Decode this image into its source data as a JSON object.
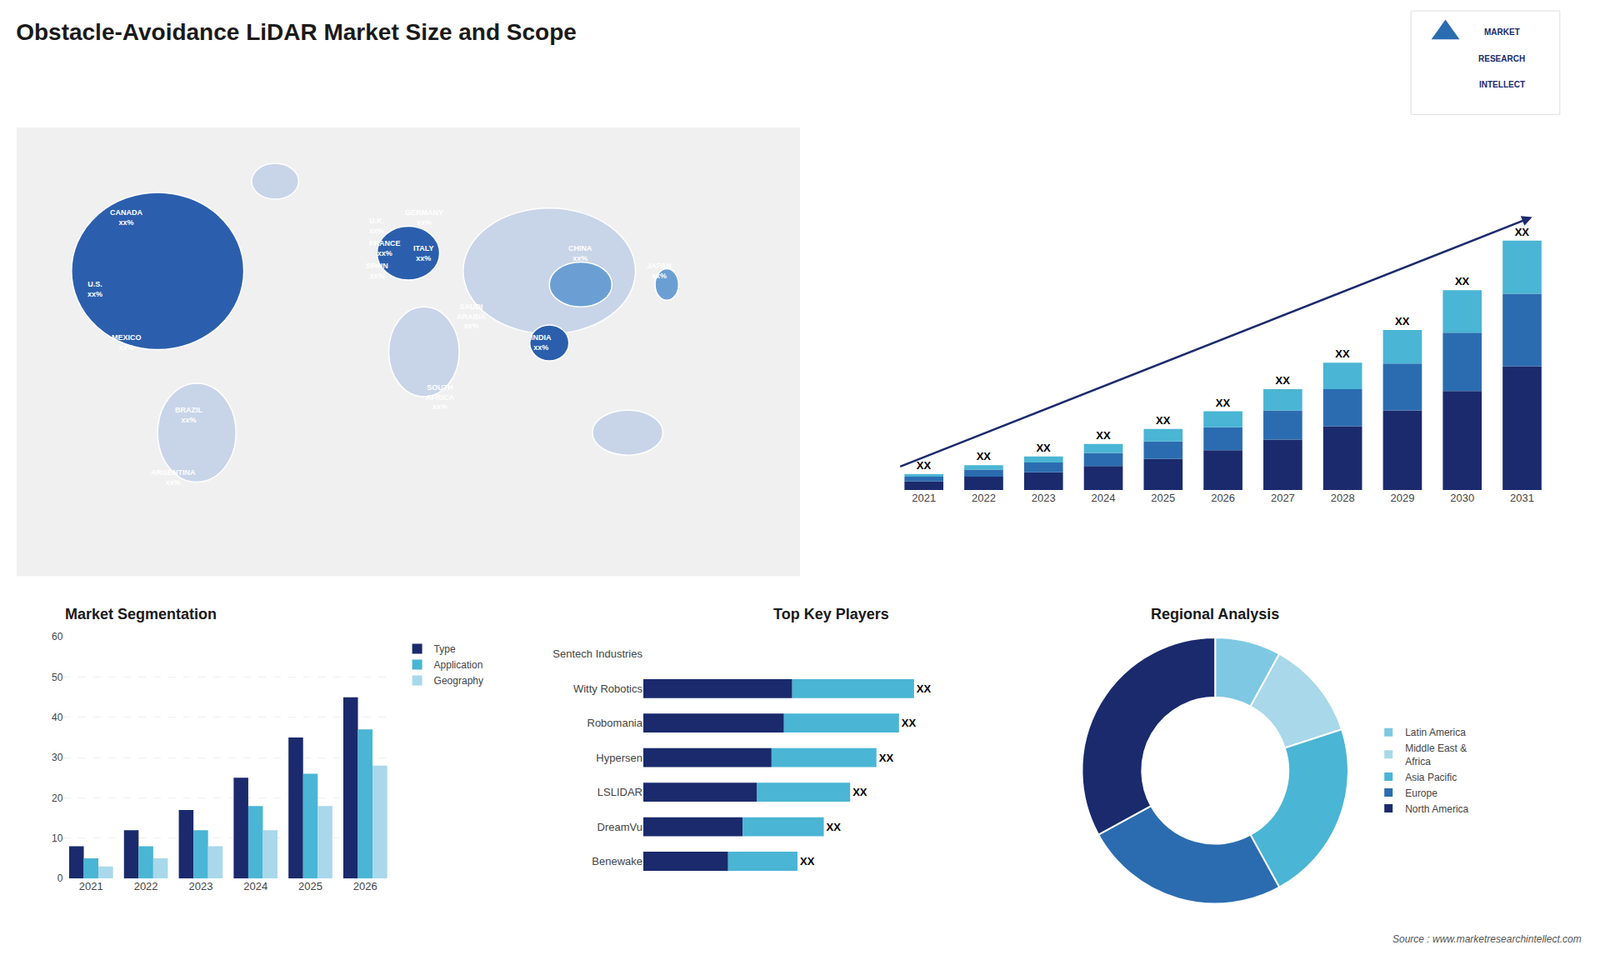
{
  "title": "Obstacle-Avoidance LiDAR Market Size and Scope",
  "annotations": [
    "Source : www.marketresearchintellect.com",
    "MARKET",
    "RESEARCH",
    "INTELLECT"
  ],
  "chart_data": [
    {
      "type": "map",
      "annotations": [
        "CANADA\nxx%",
        "U.S.\nxx%",
        "MEXICO\nxx%",
        "BRAZIL\nxx%",
        "ARGENTINA\nxx%",
        "U.K.\nxx%",
        "FRANCE\nxx%",
        "SPAIN\nxx%",
        "GERMANY\nxx%",
        "ITALY\nxx%",
        "SAUDI\nARABIA\nxx%",
        "SOUTH\nAFRICA\nxx%",
        "CHINA\nxx%",
        "INDIA\nxx%",
        "JAPAN\nxx%"
      ]
    },
    {
      "type": "bar",
      "stacked": true,
      "categories": [
        "2021",
        "2022",
        "2023",
        "2024",
        "2025",
        "2026",
        "2027",
        "2028",
        "2029",
        "2030",
        "2031"
      ],
      "series": [
        {
          "color": "#1a2a6c",
          "values": [
            1,
            1.5,
            2,
            2.7,
            3.5,
            4.5,
            5.7,
            7.2,
            9.0,
            11.2,
            14.0
          ]
        },
        {
          "color": "#2b6cb0",
          "values": [
            0.5,
            0.8,
            1.1,
            1.5,
            2.0,
            2.6,
            3.3,
            4.2,
            5.3,
            6.6,
            8.2
          ]
        },
        {
          "color": "#4ab5d4",
          "values": [
            0.3,
            0.5,
            0.7,
            1.0,
            1.4,
            1.8,
            2.4,
            3.0,
            3.8,
            4.8,
            6.0
          ],
          "value_labels": [
            "XX",
            "XX",
            "XX",
            "XX",
            "XX",
            "XX",
            "XX",
            "XX",
            "XX",
            "XX",
            "XX"
          ]
        }
      ],
      "ylim": [
        0,
        33.2
      ],
      "grid": false,
      "tick_labels": "x"
    },
    {
      "type": "bar",
      "title": "Market Segmentation",
      "categories": [
        "2021",
        "2022",
        "2023",
        "2024",
        "2025",
        "2026"
      ],
      "series": [
        {
          "name": "Type",
          "color": "#1a2a6c",
          "values": [
            8,
            12,
            17,
            25,
            35,
            45
          ]
        },
        {
          "name": "Application",
          "color": "#4ab5d4",
          "values": [
            5,
            8,
            12,
            18,
            26,
            37
          ]
        },
        {
          "name": "Geography",
          "color": "#a8d8ea",
          "values": [
            3,
            5,
            8,
            12,
            18,
            28
          ]
        }
      ],
      "ylim": [
        0,
        60
      ],
      "yticks": [
        0,
        10,
        20,
        30,
        40,
        50,
        60
      ],
      "grid": true,
      "legend": "right"
    },
    {
      "type": "bar",
      "title": "Top Key Players",
      "orientation": "horizontal",
      "stacked": true,
      "categories": [
        "Sentech Industries",
        "Witty Robotics",
        "Robomania",
        "Hypersen",
        "LSLIDAR",
        "DreamVu",
        "Benewake"
      ],
      "series": [
        {
          "color": "#1a2a6c",
          "values": [
            0,
            3.96,
            3.74,
            3.41,
            3.025,
            2.64,
            2.255
          ]
        },
        {
          "color": "#4ab5d4",
          "values": [
            0,
            3.24,
            3.06,
            2.79,
            2.475,
            2.16,
            1.845
          ],
          "value_labels": [
            null,
            "XX",
            "XX",
            "XX",
            "XX",
            "XX",
            "XX"
          ]
        }
      ],
      "xlim": [
        0,
        10
      ],
      "grid": false,
      "tick_labels": "y"
    },
    {
      "type": "pie",
      "title": "Regional Analysis",
      "categories": [
        "Latin America",
        "Middle East &\nAfrica",
        "Asia Pacific",
        "Europe",
        "North America"
      ],
      "values": [
        8,
        12,
        22,
        25,
        33
      ],
      "colors": [
        "#7ec8e3",
        "#a8d8ea",
        "#4ab5d4",
        "#2b6cb0",
        "#1a2a6c"
      ],
      "legend": "right"
    }
  ]
}
